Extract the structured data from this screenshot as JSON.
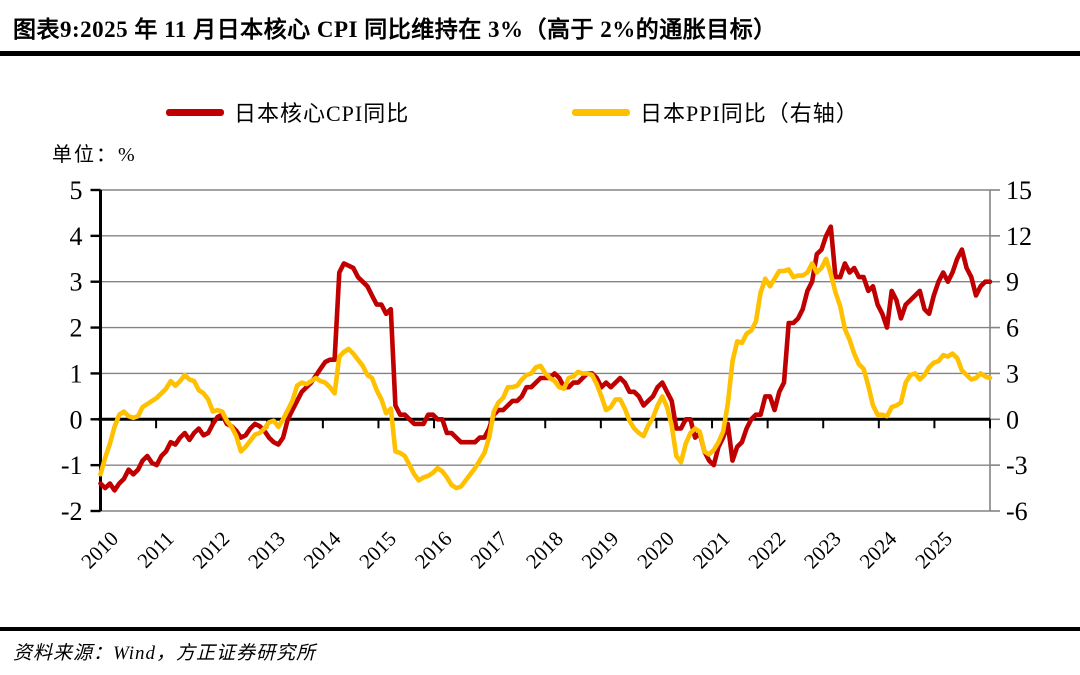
{
  "header": {
    "title": "图表9:2025 年 11 月日本核心 CPI 同比维持在 3%（高于 2%的通胀目标）"
  },
  "footer": {
    "source": "资料来源：Wind，方正证券研究所"
  },
  "chart_data": {
    "type": "line",
    "title": "图表9:2025 年 11 月日本核心 CPI 同比维持在 3%（高于 2%的通胀目标）",
    "unit_label": "单位：%",
    "grid": true,
    "legend_position": "top",
    "grid_color": "#848484",
    "zero_line_color": "#000000",
    "x_start": "2010-01",
    "x_end": "2025-11",
    "x_frequency": "monthly",
    "x_tick_labels": [
      "2010",
      "2011",
      "2012",
      "2013",
      "2014",
      "2015",
      "2016",
      "2017",
      "2018",
      "2019",
      "2020",
      "2021",
      "2022",
      "2023",
      "2024",
      "2025"
    ],
    "left_axis": {
      "min": -2,
      "max": 5,
      "ticks": [
        5,
        4,
        3,
        2,
        1,
        0,
        -1,
        -2
      ]
    },
    "right_axis": {
      "min": -6,
      "max": 15,
      "ticks": [
        15,
        12,
        9,
        6,
        3,
        0,
        -3,
        -6
      ]
    },
    "series": [
      {
        "name": "日本核心CPI同比",
        "axis": "left",
        "color": "#C00000",
        "values": [
          -1.4,
          -1.5,
          -1.4,
          -1.55,
          -1.4,
          -1.3,
          -1.1,
          -1.2,
          -1.1,
          -0.9,
          -0.8,
          -0.95,
          -1.0,
          -0.8,
          -0.7,
          -0.5,
          -0.55,
          -0.4,
          -0.3,
          -0.45,
          -0.3,
          -0.2,
          -0.35,
          -0.3,
          -0.1,
          0.05,
          0.1,
          -0.1,
          -0.15,
          -0.25,
          -0.4,
          -0.35,
          -0.2,
          -0.1,
          -0.15,
          -0.25,
          -0.4,
          -0.5,
          -0.55,
          -0.4,
          0.0,
          0.2,
          0.4,
          0.6,
          0.7,
          0.8,
          0.95,
          1.1,
          1.25,
          1.3,
          1.3,
          3.2,
          3.4,
          3.35,
          3.3,
          3.1,
          3.0,
          2.9,
          2.7,
          2.5,
          2.5,
          2.3,
          2.4,
          0.3,
          0.1,
          0.1,
          0.0,
          -0.1,
          -0.1,
          -0.1,
          0.1,
          0.1,
          0.0,
          0.0,
          -0.3,
          -0.3,
          -0.4,
          -0.5,
          -0.5,
          -0.5,
          -0.5,
          -0.4,
          -0.4,
          -0.2,
          0.1,
          0.2,
          0.2,
          0.3,
          0.4,
          0.4,
          0.5,
          0.7,
          0.7,
          0.8,
          0.9,
          0.9,
          0.9,
          1.0,
          0.9,
          0.7,
          0.7,
          0.8,
          0.8,
          0.9,
          1.0,
          1.0,
          0.9,
          0.7,
          0.8,
          0.7,
          0.8,
          0.9,
          0.8,
          0.6,
          0.6,
          0.5,
          0.3,
          0.4,
          0.5,
          0.7,
          0.8,
          0.6,
          0.4,
          -0.2,
          -0.2,
          0.0,
          0.0,
          -0.4,
          -0.3,
          -0.7,
          -0.9,
          -1.0,
          -0.6,
          -0.4,
          -0.1,
          -0.9,
          -0.6,
          -0.5,
          -0.2,
          0.0,
          0.1,
          0.1,
          0.5,
          0.5,
          0.2,
          0.6,
          0.8,
          2.1,
          2.1,
          2.2,
          2.4,
          2.8,
          3.0,
          3.6,
          3.7,
          4.0,
          4.2,
          3.1,
          3.1,
          3.4,
          3.2,
          3.3,
          3.1,
          3.1,
          2.8,
          2.9,
          2.5,
          2.3,
          2.0,
          2.8,
          2.6,
          2.2,
          2.5,
          2.6,
          2.7,
          2.8,
          2.4,
          2.3,
          2.7,
          3.0,
          3.2,
          3.0,
          3.2,
          3.5,
          3.7,
          3.3,
          3.1,
          2.7,
          2.9,
          3.0,
          3.0
        ]
      },
      {
        "name": "日本PPI同比（右轴）",
        "axis": "right",
        "color": "#FFC000",
        "values": [
          -3.6,
          -2.5,
          -1.6,
          -0.5,
          0.3,
          0.5,
          0.2,
          0.1,
          0.2,
          0.8,
          1.0,
          1.2,
          1.4,
          1.7,
          2.0,
          2.5,
          2.2,
          2.5,
          2.9,
          2.6,
          2.5,
          1.9,
          1.7,
          1.3,
          0.5,
          0.6,
          0.5,
          -0.1,
          -0.5,
          -1.1,
          -2.1,
          -1.8,
          -1.4,
          -1.0,
          -0.9,
          -0.6,
          -0.2,
          -0.1,
          -0.5,
          0.0,
          0.6,
          1.2,
          2.2,
          2.4,
          2.3,
          2.5,
          2.7,
          2.5,
          2.4,
          2.1,
          1.7,
          4.1,
          4.4,
          4.6,
          4.3,
          3.9,
          3.5,
          2.9,
          2.7,
          1.9,
          1.3,
          0.4,
          0.7,
          -2.1,
          -2.2,
          -2.4,
          -3.0,
          -3.6,
          -4.0,
          -3.8,
          -3.7,
          -3.5,
          -3.2,
          -3.4,
          -3.8,
          -4.3,
          -4.5,
          -4.4,
          -4.0,
          -3.6,
          -3.2,
          -2.7,
          -2.2,
          -1.2,
          0.5,
          1.1,
          1.4,
          2.1,
          2.1,
          2.2,
          2.6,
          2.9,
          3.0,
          3.4,
          3.5,
          3.0,
          2.7,
          2.5,
          2.1,
          2.0,
          2.7,
          2.8,
          3.1,
          3.0,
          3.0,
          2.9,
          2.3,
          1.5,
          0.6,
          0.8,
          1.3,
          1.3,
          0.7,
          -0.1,
          -0.6,
          -0.9,
          -1.1,
          -0.4,
          0.1,
          0.9,
          1.5,
          0.8,
          -0.4,
          -2.4,
          -2.8,
          -1.6,
          -0.9,
          -0.6,
          -0.8,
          -2.1,
          -2.3,
          -2.0,
          -1.5,
          -0.8,
          1.0,
          3.8,
          5.1,
          5.0,
          5.6,
          5.8,
          6.4,
          8.3,
          9.2,
          8.7,
          9.2,
          9.7,
          9.7,
          9.8,
          9.3,
          9.4,
          9.4,
          9.6,
          10.2,
          9.6,
          9.9,
          10.5,
          9.5,
          8.3,
          7.4,
          5.9,
          5.2,
          4.3,
          3.6,
          3.3,
          2.2,
          0.9,
          0.3,
          0.3,
          0.2,
          0.8,
          0.9,
          1.1,
          2.4,
          2.9,
          3.0,
          2.6,
          2.9,
          3.4,
          3.7,
          3.8,
          4.2,
          4.1,
          4.3,
          4.0,
          3.2,
          2.9,
          2.6,
          2.7,
          3.0,
          2.8,
          2.7
        ]
      }
    ]
  }
}
